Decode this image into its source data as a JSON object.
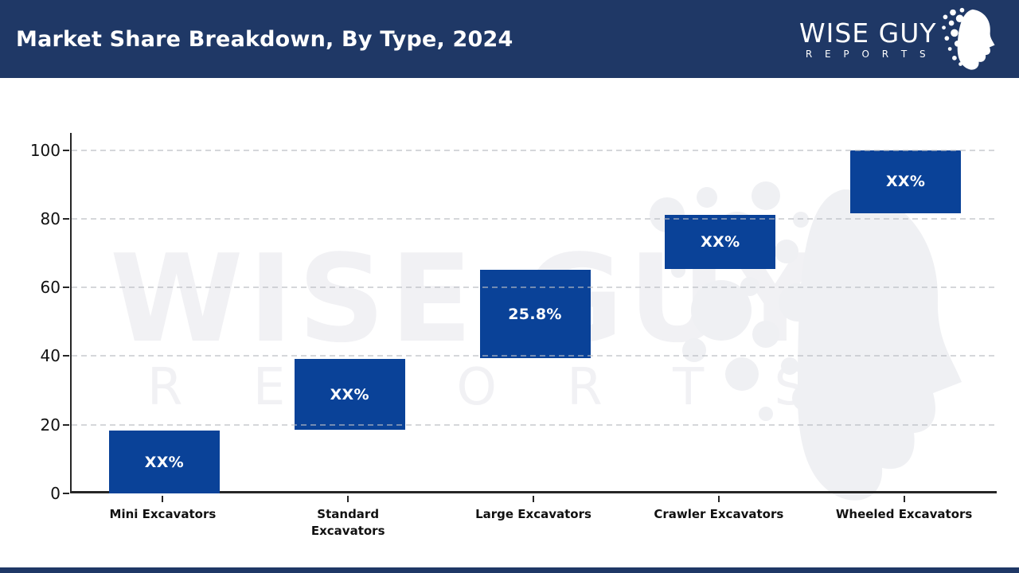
{
  "header": {
    "title": "Market Share Breakdown, By Type, 2024",
    "logo": {
      "line1": "WISE GUY",
      "line2": "R E P O R T S"
    }
  },
  "watermark": {
    "line1": "WISE GUY",
    "line2": "R E P O R T S"
  },
  "colors": {
    "header_bg": "#1f3866",
    "footer_bg": "#1f3866",
    "bar_fill": "#0a4298",
    "bar_label_text": "#ffffff",
    "title_text": "#ffffff",
    "axis": "#262626",
    "tick_text": "#111111",
    "gridline": "#d9d9d9",
    "watermark_gray": "#f1f1f4"
  },
  "chart_data": {
    "type": "bar",
    "subtype": "waterfall",
    "title": "Market Share Breakdown, By Type, 2024",
    "xlabel": "",
    "ylabel": "",
    "categories": [
      "Mini Excavators",
      "Standard\nExcavators",
      "Large Excavators",
      "Crawler Excavators",
      "Wheeled Excavators"
    ],
    "segments": [
      {
        "category": "Mini Excavators",
        "start": 0,
        "end": 18.2,
        "label": "XX%"
      },
      {
        "category": "Standard Excavators",
        "start": 18.5,
        "end": 39.2,
        "label": "XX%"
      },
      {
        "category": "Large Excavators",
        "start": 39.3,
        "end": 65.1,
        "label": "25.8%"
      },
      {
        "category": "Crawler Excavators",
        "start": 65.4,
        "end": 81.2,
        "label": "XX%"
      },
      {
        "category": "Wheeled Excavators",
        "start": 81.5,
        "end": 100,
        "label": "XX%"
      }
    ],
    "yticks": [
      0,
      20,
      40,
      60,
      80,
      100
    ],
    "ytick_labels": [
      "0",
      "20",
      "40",
      "60",
      "80",
      "100"
    ],
    "ylim": [
      0,
      105
    ],
    "grid": "horizontal-dashed",
    "legend": "none"
  }
}
